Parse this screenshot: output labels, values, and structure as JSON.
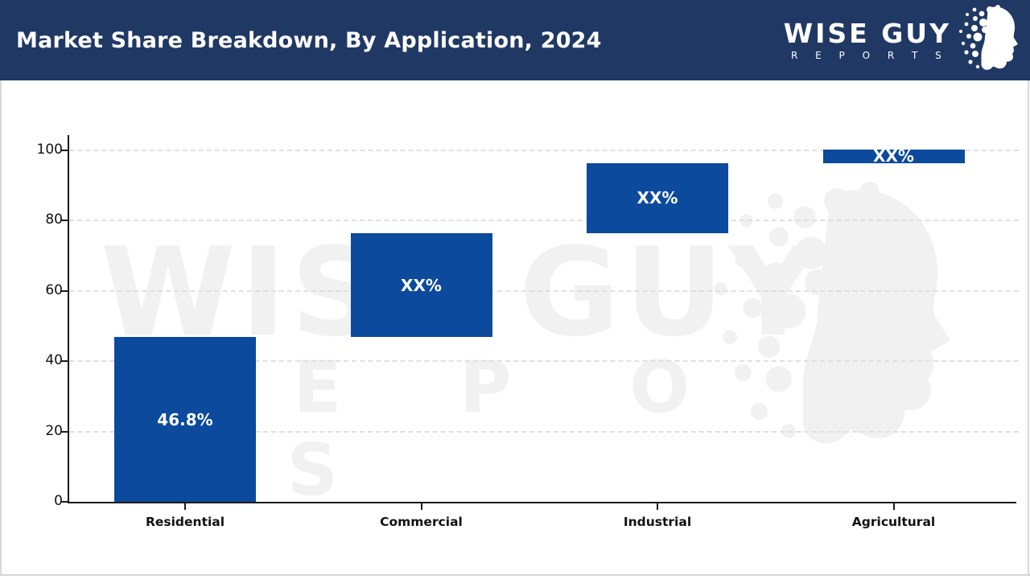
{
  "header": {
    "title": "Market Share Breakdown, By Application, 2024",
    "bg_color": "#203864",
    "logo": {
      "line1": "WISE GUY",
      "line2": "R E P O R T S"
    }
  },
  "watermark": {
    "line1": "WISE GUY",
    "line2": "R E P O R T S"
  },
  "chart_data": {
    "type": "bar",
    "subtype": "waterfall-stacked-percentage",
    "title": "Market Share Breakdown, By Application, 2024",
    "categories": [
      "Residential",
      "Commercial",
      "Industrial",
      "Agricultural"
    ],
    "segments": [
      {
        "category": "Residential",
        "start": 0,
        "end": 46.8,
        "label": "46.8%"
      },
      {
        "category": "Commercial",
        "start": 46.8,
        "end": 76.5,
        "label": "XX%"
      },
      {
        "category": "Industrial",
        "start": 76.5,
        "end": 96.4,
        "label": "XX%"
      },
      {
        "category": "Agricultural",
        "start": 96.4,
        "end": 100.3,
        "label": "XX%"
      }
    ],
    "yticks": [
      0,
      20,
      40,
      60,
      80,
      100
    ],
    "ylim": [
      0,
      104.5
    ],
    "xlabel": "",
    "ylabel": "",
    "grid": "horizontal-dashed",
    "legend": "none",
    "bar_color": "#0b4a9c",
    "label_color": "#ffffff"
  }
}
